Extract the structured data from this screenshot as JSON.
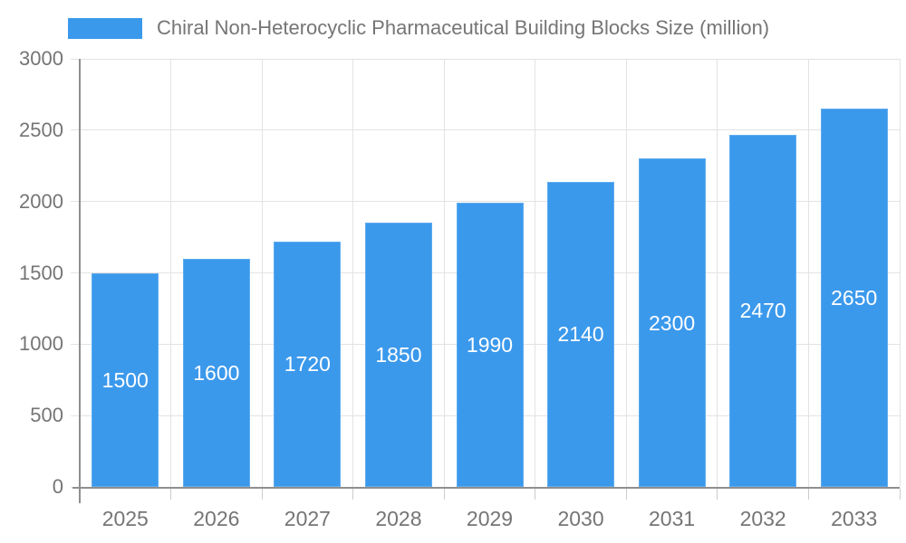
{
  "chart_data": {
    "type": "bar",
    "title": "Chiral Non-Heterocyclic Pharmaceutical Building Blocks Size (million)",
    "categories": [
      "2025",
      "2026",
      "2027",
      "2028",
      "2029",
      "2030",
      "2031",
      "2032",
      "2033"
    ],
    "values": [
      1500,
      1600,
      1720,
      1850,
      1990,
      2140,
      2300,
      2470,
      2650
    ],
    "xlabel": "",
    "ylabel": "",
    "ylim": [
      0,
      3000
    ],
    "yticks": [
      0,
      500,
      1000,
      1500,
      2000,
      2500,
      3000
    ],
    "grid": true,
    "legend_position": "top-left",
    "legend_entries": [
      "Chiral Non-Heterocyclic Pharmaceutical Building Blocks Size (million)"
    ],
    "bar_labels_visible": true,
    "colors": {
      "bar": "#3B99EC",
      "bar_border": "#5FACEF",
      "bar_label": "#FFFFFF",
      "axis_text": "#757575",
      "grid": "#E3E3E3",
      "axis_line": "#8F8F8F",
      "tick": "#CCCCCC",
      "background": "#FFFFFF"
    }
  }
}
